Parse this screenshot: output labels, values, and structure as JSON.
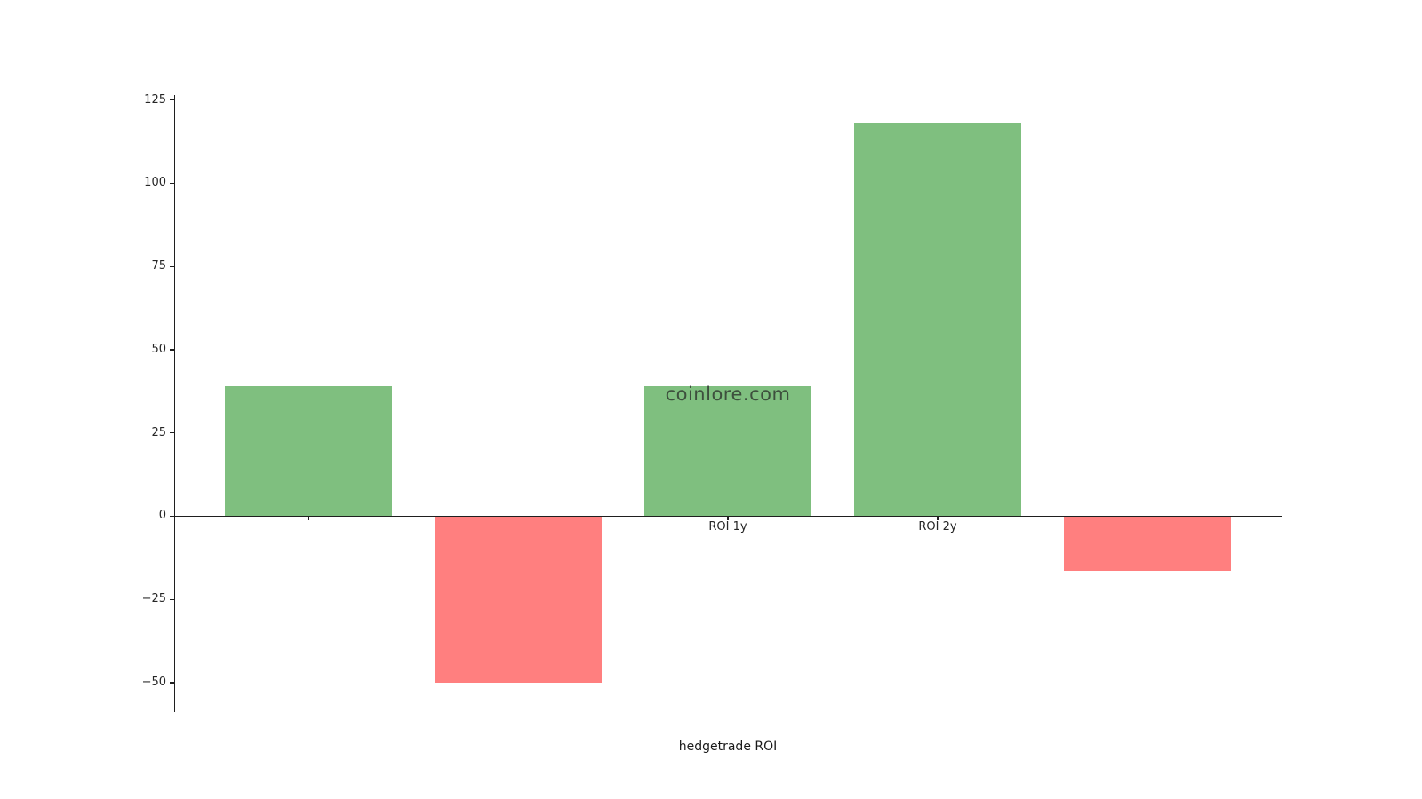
{
  "page": {
    "background": "#ffffff"
  },
  "chart_data": {
    "type": "bar",
    "title": "",
    "xlabel": "hedgetrade ROI",
    "ylabel": "",
    "watermark": "coinlore.com",
    "categories": [
      "",
      "",
      "ROI 1y",
      "ROI 2y",
      ""
    ],
    "values": [
      39,
      -50,
      39,
      118,
      -16.5
    ],
    "bar_colors": [
      "#7fbf7f",
      "#ff7f7f",
      "#7fbf7f",
      "#7fbf7f",
      "#ff7f7f"
    ],
    "positive_color": "#7fbf7f",
    "negative_color": "#ff7f7f",
    "x_ticks_visible": [
      true,
      false,
      true,
      true,
      false
    ],
    "yticks": [
      125,
      100,
      75,
      50,
      25,
      0,
      -25,
      -50
    ],
    "ytick_labels": [
      "125",
      "100",
      "75",
      "50",
      "25",
      "0",
      "−25",
      "−50"
    ],
    "ylim": [
      -58.8,
      126.5
    ],
    "grid": false,
    "legend": null,
    "axis_color": "#1f1f1f",
    "text_color": "#262626"
  }
}
